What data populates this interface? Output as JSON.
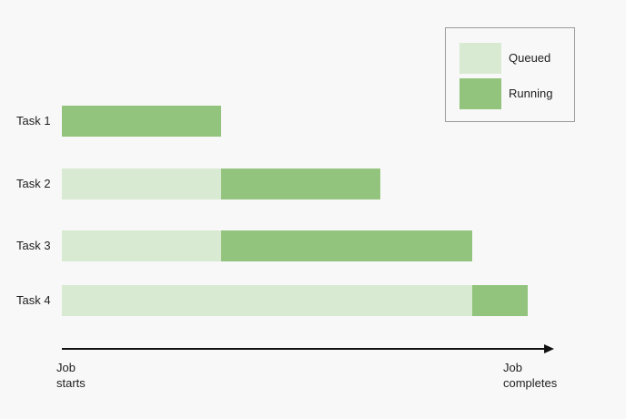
{
  "colors": {
    "background": "#f8f8f8",
    "queued": "#d9ead3",
    "running": "#93c47d",
    "text": "#1f1f1f",
    "axis": "#111111",
    "legend_border": "#9b9b9b"
  },
  "legend": {
    "position": "top-right",
    "items": [
      {
        "label": "Queued",
        "color": "#d9ead3"
      },
      {
        "label": "Running",
        "color": "#93c47d"
      }
    ]
  },
  "chart_data": {
    "type": "bar",
    "variant": "horizontal_stacked_gantt",
    "title": "",
    "xlabel": "",
    "ylabel": "",
    "grid": false,
    "axis_range": [
      0,
      1
    ],
    "categories": [
      "Task 1",
      "Task 2",
      "Task 3",
      "Task 4"
    ],
    "series": [
      {
        "name": "Queued",
        "color_key": "queued",
        "spans": [
          [
            0,
            0
          ],
          [
            0,
            0.324
          ],
          [
            0,
            0.324
          ],
          [
            0,
            0.835
          ]
        ]
      },
      {
        "name": "Running",
        "color_key": "running",
        "spans": [
          [
            0,
            0.324
          ],
          [
            0.324,
            0.648
          ],
          [
            0.324,
            0.835
          ],
          [
            0.835,
            0.948
          ]
        ]
      }
    ],
    "x_axis": {
      "arrow": true,
      "start_label_lines": [
        "Job",
        "starts"
      ],
      "end_label_lines": [
        "Job",
        "completes"
      ]
    }
  }
}
